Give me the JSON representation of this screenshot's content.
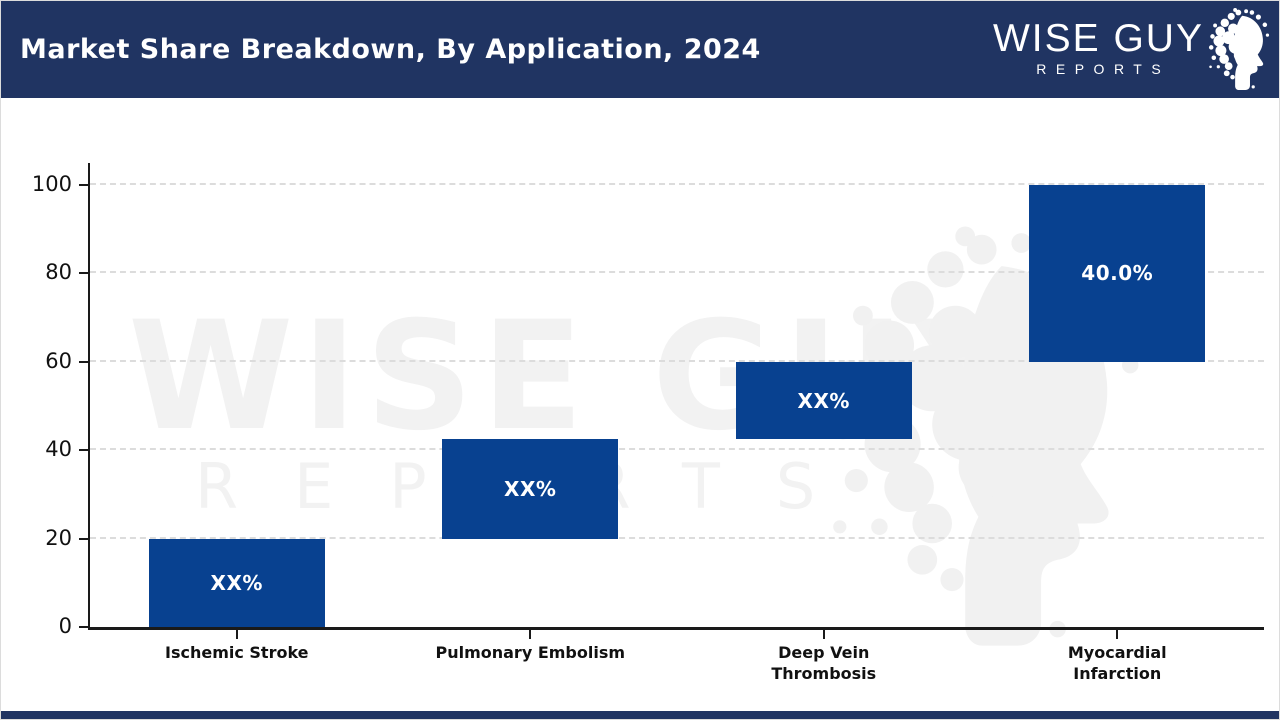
{
  "header": {
    "title": "Market Share Breakdown, By Application, 2024",
    "logo": {
      "line1": "WISE GUY",
      "line2": "REPORTS"
    }
  },
  "watermark": {
    "line1": "WISE GUY",
    "line2": "REPORTS"
  },
  "colors": {
    "header_bg": "#203462",
    "footer_bg": "#203462",
    "bar": "#084190",
    "bar_label": "#ffffff",
    "gridline": "#dcdcdc",
    "axis": "#1a1a1a",
    "watermark": "#f2f2f2"
  },
  "chart_data": {
    "type": "bar",
    "subtype": "waterfall",
    "title": "Market Share Breakdown, By Application, 2024",
    "xlabel": "",
    "ylabel": "",
    "categories": [
      "Ischemic Stroke",
      "Pulmonary Embolism",
      "Deep Vein Thrombosis",
      "Myocardial Infarction"
    ],
    "category_display_lines": [
      [
        "Ischemic Stroke"
      ],
      [
        "Pulmonary Embolism"
      ],
      [
        "Deep Vein",
        "Thrombosis"
      ],
      [
        "Myocardial",
        "Infarction"
      ]
    ],
    "segments": [
      {
        "category": "Ischemic Stroke",
        "start": 0,
        "end": 20,
        "value_label": "XX%"
      },
      {
        "category": "Pulmonary Embolism",
        "start": 20,
        "end": 42.5,
        "value_label": "XX%"
      },
      {
        "category": "Deep Vein Thrombosis",
        "start": 42.5,
        "end": 60,
        "value_label": "XX%"
      },
      {
        "category": "Myocardial Infarction",
        "start": 60,
        "end": 100,
        "value_label": "40.0%"
      }
    ],
    "yticks": [
      0,
      20,
      40,
      60,
      80,
      100
    ],
    "ylim": [
      0,
      105
    ],
    "grid": "horizontal-dashed",
    "legend": "none"
  }
}
